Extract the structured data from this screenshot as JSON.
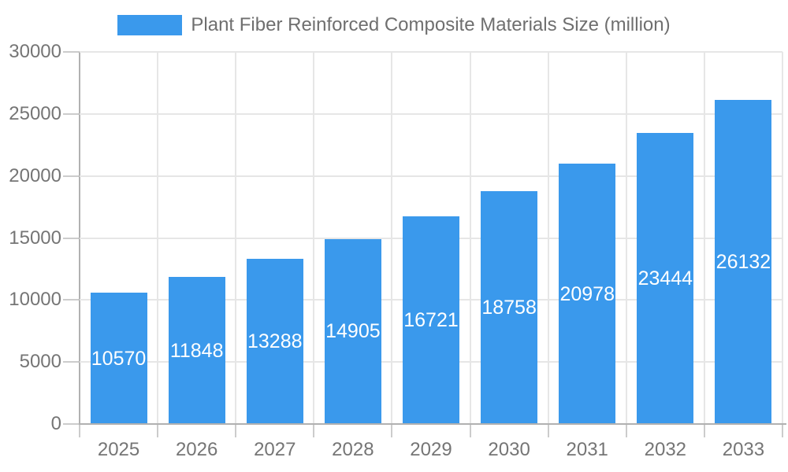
{
  "legend": {
    "items": [
      {
        "label": "Plant Fiber Reinforced Composite Materials Size (million)",
        "color": "#3A99EC"
      }
    ]
  },
  "chart_data": {
    "type": "bar",
    "title": "Plant Fiber Reinforced Composite Materials Size (million)",
    "categories": [
      "2025",
      "2026",
      "2027",
      "2028",
      "2029",
      "2030",
      "2031",
      "2032",
      "2033"
    ],
    "values": [
      10570,
      11848,
      13288,
      14905,
      16721,
      18758,
      20978,
      23444,
      26132
    ],
    "xlabel": "",
    "ylabel": "",
    "ylim": [
      0,
      30000
    ],
    "yticks": [
      0,
      5000,
      10000,
      15000,
      20000,
      25000,
      30000
    ],
    "grid": true,
    "legend_position": "top",
    "value_labels_inside_bars": true
  },
  "style": {
    "bar_color": "#3A99EC",
    "grid_color": "#E6E6E6",
    "axis_color": "#B1B1B1",
    "tick_color": "#CCCCCC",
    "text_color": "#757575",
    "value_label_color": "#FFFFFF",
    "background": "#FFFFFF"
  }
}
